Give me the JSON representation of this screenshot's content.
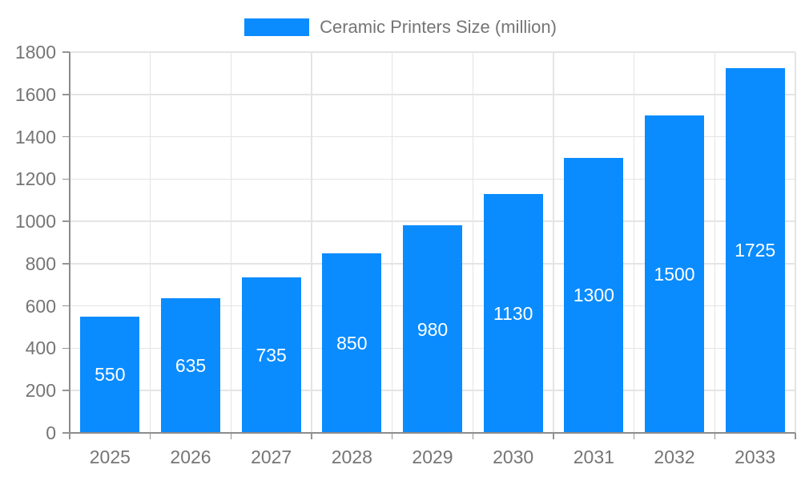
{
  "chart_data": {
    "type": "bar",
    "title": "",
    "legend": "Ceramic Printers Size (million)",
    "legend_position": "top-center",
    "categories": [
      "2025",
      "2026",
      "2027",
      "2028",
      "2029",
      "2030",
      "2031",
      "2032",
      "2033"
    ],
    "series": [
      {
        "name": "Ceramic Printers Size (million)",
        "values": [
          550,
          635,
          735,
          850,
          980,
          1130,
          1300,
          1500,
          1725
        ]
      }
    ],
    "value_labels": [
      "550",
      "635",
      "735",
      "850",
      "980",
      "1130",
      "1300",
      "1500",
      "1725"
    ],
    "xlabel": "",
    "ylabel": "",
    "ylim": [
      0,
      1800
    ],
    "yticks": [
      0,
      200,
      400,
      600,
      800,
      1000,
      1200,
      1400,
      1600,
      1800
    ],
    "grid": true,
    "colors": {
      "bar": "#0a8cff",
      "value_label_text": "#ffffff",
      "axis_text": "#757575",
      "axis_line": "#8c8c8c",
      "gridline": "#e4e4e4",
      "background": "#ffffff"
    }
  }
}
